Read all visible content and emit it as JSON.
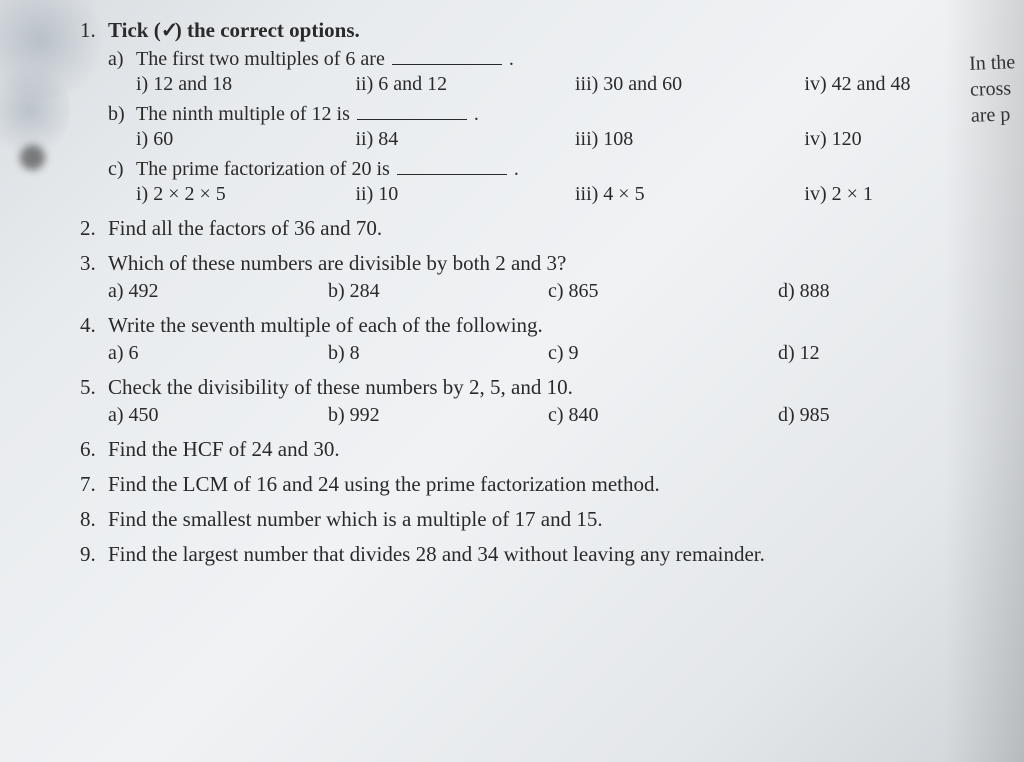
{
  "q1": {
    "num": "1.",
    "title_a": "Tick (",
    "title_b": ") the correct options.",
    "a": {
      "letter": "a)",
      "text_a": "The first two multiples of 6 are ",
      "text_b": " .",
      "opts": {
        "i": "i) 12 and 18",
        "ii": "ii) 6 and 12",
        "iii": "iii) 30 and 60",
        "iv": "iv) 42 and 48"
      }
    },
    "b": {
      "letter": "b)",
      "text_a": "The ninth multiple of 12 is ",
      "text_b": " .",
      "opts": {
        "i": "i) 60",
        "ii": "ii) 84",
        "iii": "iii) 108",
        "iv": "iv) 120"
      }
    },
    "c": {
      "letter": "c)",
      "text_a": "The prime factorization of 20 is ",
      "text_b": " .",
      "opts": {
        "i": "i) 2 × 2 × 5",
        "ii": "ii) 10",
        "iii": "iii) 4 × 5",
        "iv": "iv) 2 × 1"
      }
    }
  },
  "q2": {
    "num": "2.",
    "text": "Find all the factors of 36 and 70."
  },
  "q3": {
    "num": "3.",
    "text": "Which of these numbers are divisible by both 2 and 3?",
    "opts": {
      "a": "a)  492",
      "b": "b) 284",
      "c": "c) 865",
      "d": "d) 888"
    }
  },
  "q4": {
    "num": "4.",
    "text": "Write the seventh multiple of each of the following.",
    "opts": {
      "a": "a)  6",
      "b": "b) 8",
      "c": "c) 9",
      "d": "d) 12"
    }
  },
  "q5": {
    "num": "5.",
    "text": "Check the divisibility of these numbers by 2, 5, and 10.",
    "opts": {
      "a": "a)  450",
      "b": "b) 992",
      "c": "c) 840",
      "d": "d) 985"
    }
  },
  "q6": {
    "num": "6.",
    "text": "Find the HCF of 24 and 30."
  },
  "q7": {
    "num": "7.",
    "text": "Find the LCM of 16 and 24 using the prime factorization method."
  },
  "q8": {
    "num": "8.",
    "text": "Find the smallest number which is a multiple of 17 and 15."
  },
  "q9": {
    "num": "9.",
    "text": "Find the largest number that divides 28 and 34 without leaving any remainder."
  },
  "margin": {
    "l1": "In the",
    "l2": "cross",
    "l3": "are p"
  }
}
